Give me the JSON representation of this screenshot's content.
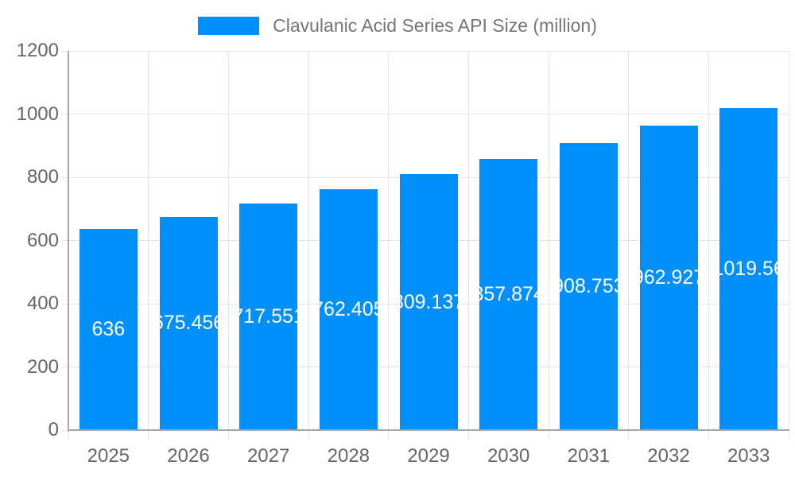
{
  "legend": {
    "label": "Clavulanic Acid Series API Size (million)"
  },
  "colors": {
    "bar": "#008FFB",
    "bar_label": "#FFFFFF",
    "grid_line": "#E4E4E4",
    "axis_line": "#A6A6A6",
    "tick_label": "#666666",
    "legend_text": "#757575",
    "background": "#FFFFFF"
  },
  "chart_data": {
    "type": "bar",
    "title": "Clavulanic Acid Series API Size (million)",
    "categories": [
      "2025",
      "2026",
      "2027",
      "2028",
      "2029",
      "2030",
      "2031",
      "2032",
      "2033"
    ],
    "values": [
      636,
      675.456,
      717.551,
      762.405,
      809.137,
      857.874,
      908.753,
      962.927,
      1019.56
    ],
    "data_labels": [
      "636",
      "675.456",
      "717.551",
      "762.405",
      "809.137",
      "857.874",
      "908.753",
      "962.927",
      "1019.56"
    ],
    "series": [
      {
        "name": "Clavulanic Acid Series API Size (million)",
        "values": [
          636,
          675.456,
          717.551,
          762.405,
          809.137,
          857.874,
          908.753,
          962.927,
          1019.56
        ]
      }
    ],
    "xlabel": "",
    "ylabel": "",
    "ylim": [
      0,
      1200
    ],
    "yticks": [
      0,
      200,
      400,
      600,
      800,
      1000,
      1200
    ],
    "grid": true,
    "legend_position": "top-center",
    "data_label_position": "middle-of-bar",
    "data_label_color": "#FFFFFF"
  }
}
